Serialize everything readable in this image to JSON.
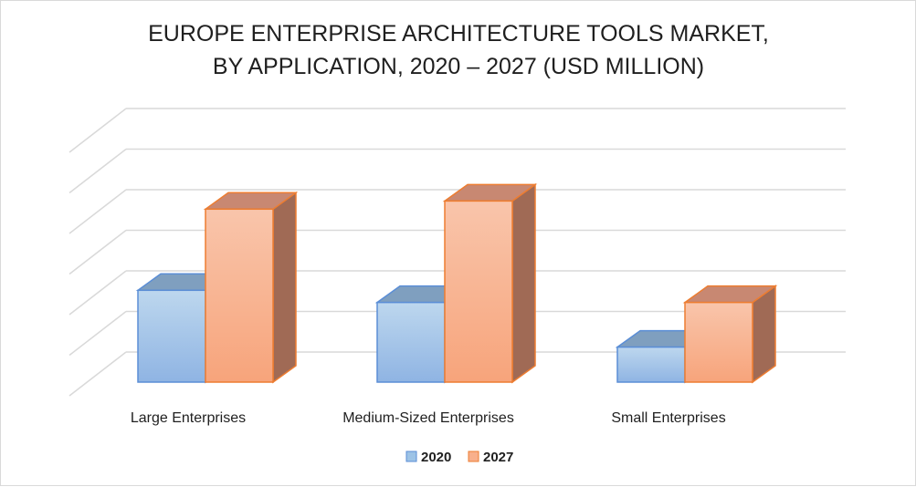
{
  "chart_data": {
    "type": "bar",
    "style": "3d-clustered-column",
    "title_lines": [
      "EUROPE ENTERPRISE ARCHITECTURE TOOLS MARKET,",
      "BY APPLICATION, 2020 – 2027 (USD MILLION)"
    ],
    "categories": [
      "Large Enterprises",
      "Medium-Sized Enterprises",
      "Small Enterprises"
    ],
    "series": [
      {
        "name": "2020",
        "values": [
          2.6,
          2.3,
          1.2
        ],
        "color": "#9dc3e6"
      },
      {
        "name": "2027",
        "values": [
          4.6,
          4.8,
          2.3
        ],
        "color": "#f8b08c"
      }
    ],
    "ylim": [
      0,
      6
    ],
    "y_axis_labels_shown": false,
    "grid": true,
    "legend_position": "bottom"
  }
}
